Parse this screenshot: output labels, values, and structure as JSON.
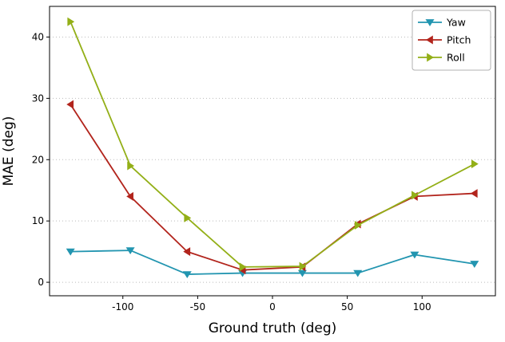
{
  "chart_data": {
    "type": "line",
    "title": "",
    "xlabel": "Ground truth (deg)",
    "ylabel": "MAE (deg)",
    "x": [
      -135,
      -95,
      -57,
      -20,
      20,
      57,
      95,
      135
    ],
    "xlim": [
      -149,
      149
    ],
    "ylim": [
      -2.2,
      45
    ],
    "xticks": [
      -100,
      -50,
      0,
      50,
      100
    ],
    "yticks": [
      0,
      10,
      20,
      30,
      40
    ],
    "grid": "horizontal-dotted",
    "grid_color": "#bbbbbb",
    "legend_position": "upper-right",
    "background": "#ffffff",
    "series": [
      {
        "name": "Yaw",
        "color": "#2295b0",
        "marker": "triangle-down",
        "values": [
          5.0,
          5.2,
          1.3,
          1.5,
          1.5,
          1.5,
          4.5,
          3.0
        ]
      },
      {
        "name": "Pitch",
        "color": "#b2241c",
        "marker": "triangle-left",
        "values": [
          29.0,
          14.0,
          5.0,
          2.0,
          2.5,
          9.5,
          14.0,
          14.5
        ]
      },
      {
        "name": "Roll",
        "color": "#93af17",
        "marker": "triangle-right",
        "values": [
          42.5,
          19.0,
          10.5,
          2.5,
          2.6,
          9.3,
          14.2,
          19.3
        ]
      }
    ]
  }
}
